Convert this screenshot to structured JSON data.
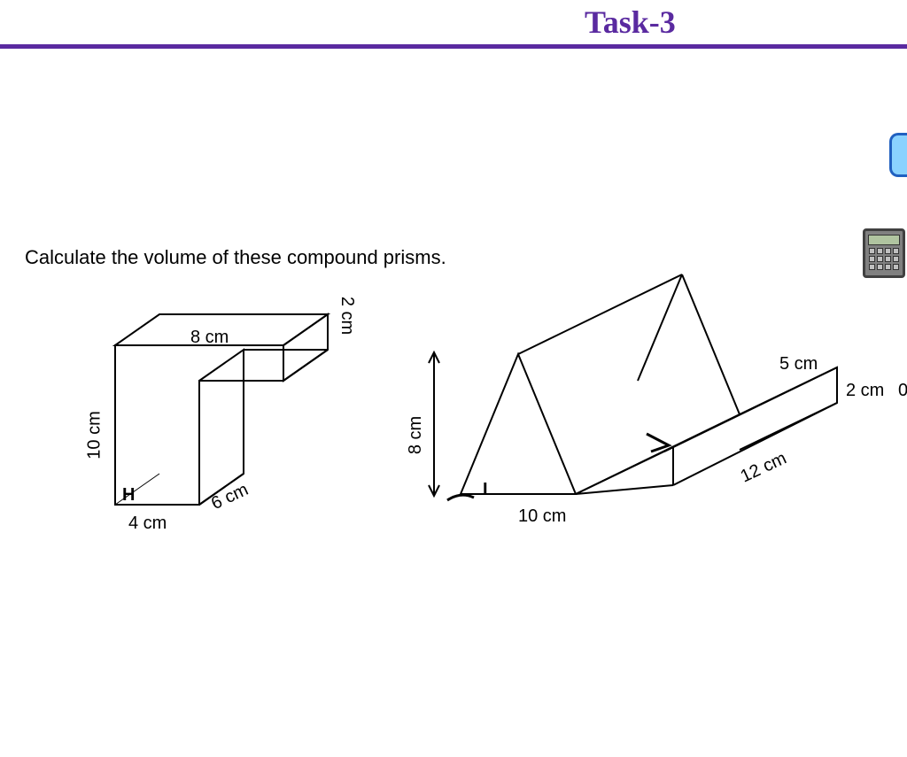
{
  "header": {
    "title": "Task-3",
    "title_color": "#5a2aa0",
    "rule_color": "#5a2aa0"
  },
  "question": {
    "text": "Calculate the volume of these compound prisms.",
    "fontsize": 22,
    "color": "#000000"
  },
  "icons": {
    "calculator_right": 974,
    "clip_color": "#2060c0"
  },
  "figure_H": {
    "type": "compound-prism",
    "label": "H",
    "dims": {
      "top_width": "8 cm",
      "top_thick": "2 cm",
      "left_height": "10 cm",
      "depth": "6 cm",
      "base_width": "4 cm"
    },
    "stroke": "#000000",
    "stroke_width": 2
  },
  "figure_I": {
    "type": "compound-prism",
    "label": "I",
    "dims": {
      "height": "8 cm",
      "base": "10 cm",
      "depth": "12 cm",
      "ext_len": "5 cm",
      "ext_thick": "2 cm"
    },
    "stroke": "#000000",
    "stroke_width": 2
  },
  "edge_text": "0"
}
